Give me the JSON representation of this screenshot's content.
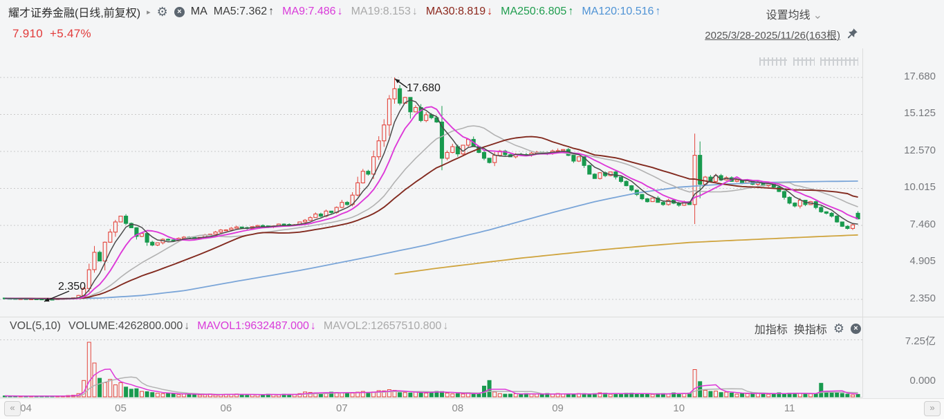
{
  "header": {
    "title": "耀才证券金融(日线,前复权)",
    "title_caret": "▸",
    "ma_label": "MA",
    "ma_items": [
      {
        "key": "ma5",
        "text": "MA5:7.362",
        "color": "#3c3c3c",
        "arrow": "↑",
        "arrow_color": "#3c3c3c"
      },
      {
        "key": "ma9",
        "text": "MA9:7.486",
        "color": "#d93ad9",
        "arrow": "↓",
        "arrow_color": "#d93ad9"
      },
      {
        "key": "ma19",
        "text": "MA19:8.153",
        "color": "#a9a9a9",
        "arrow": "↓",
        "arrow_color": "#a9a9a9"
      },
      {
        "key": "ma30",
        "text": "MA30:8.819",
        "color": "#8b261b",
        "arrow": "↓",
        "arrow_color": "#c9251c"
      },
      {
        "key": "ma250",
        "text": "MA250:6.805",
        "color": "#1f9d4e",
        "arrow": "↑",
        "arrow_color": "#1f9d4e"
      },
      {
        "key": "ma120",
        "text": "MA120:10.516",
        "color": "#4f93d5",
        "arrow": "↑",
        "arrow_color": "#4f93d5"
      }
    ],
    "settings_label": "设置均线",
    "settings_chevron": "⌄",
    "quote_price": "7.910",
    "quote_change": "+5.47%",
    "date_range": "2025/3/28-2025/11/26(163根)"
  },
  "annotations": {
    "high": "17.680",
    "low": "2.350"
  },
  "volume_panel": {
    "items": [
      {
        "key": "vol-indicator",
        "text": "VOL(5,10)",
        "color": "#4a4a4a",
        "arrow": "",
        "arrow_color": ""
      },
      {
        "key": "volume",
        "text": "VOLUME:4262800.000",
        "color": "#4a4a4a",
        "arrow": "↓",
        "arrow_color": "#6a6a6a"
      },
      {
        "key": "mavol1",
        "text": "MAVOL1:9632487.000",
        "color": "#d93ad9",
        "arrow": "↓",
        "arrow_color": "#d93ad9"
      },
      {
        "key": "mavol2",
        "text": "MAVOL2:12657510.800",
        "color": "#a9a9a9",
        "arrow": "↓",
        "arrow_color": "#a9a9a9"
      }
    ],
    "add_indicator": "加指标",
    "switch_indicator": "换指标",
    "axis_max": "7.25亿",
    "axis_min": "0.000"
  },
  "footer": {
    "scroll_left": "«",
    "scroll_right": "»"
  },
  "chart_data": {
    "type": "candlestick+volume",
    "symbol": "耀才证券金融",
    "period": "日线,前复权",
    "bar_count": 163,
    "date_range": "2025/3/28-2025/11/26",
    "last_price": 7.91,
    "last_change_pct": 5.47,
    "high_annotation": 17.68,
    "low_annotation": 2.35,
    "ylim": [
      2.35,
      17.68
    ],
    "y_ticks": [
      {
        "label": "17.680",
        "v": 17.68
      },
      {
        "label": "15.125",
        "v": 15.125
      },
      {
        "label": "12.570",
        "v": 12.57
      },
      {
        "label": "10.015",
        "v": 10.015
      },
      {
        "label": "7.460",
        "v": 7.46
      },
      {
        "label": "4.905",
        "v": 4.905
      },
      {
        "label": "2.350",
        "v": 2.35
      }
    ],
    "x_months": [
      {
        "label": "04",
        "i": 4
      },
      {
        "label": "05",
        "i": 22
      },
      {
        "label": "06",
        "i": 42
      },
      {
        "label": "07",
        "i": 64
      },
      {
        "label": "08",
        "i": 86
      },
      {
        "label": "09",
        "i": 105
      },
      {
        "label": "10",
        "i": 128
      },
      {
        "label": "11",
        "i": 149
      }
    ],
    "volume_axis": {
      "max_label": "7.25亿",
      "max_value": 725000000,
      "min_label": "0.000"
    },
    "last_values": {
      "ma5": 7.362,
      "ma9": 7.486,
      "ma19": 8.153,
      "ma30": 8.819,
      "ma250": 6.805,
      "ma120": 10.516,
      "volume": 4262800,
      "mavol1": 9632487,
      "mavol2": 12657510.8
    },
    "last_open": 8.3,
    "close_keyframes": [
      [
        0,
        2.42
      ],
      [
        3,
        2.4
      ],
      [
        6,
        2.38
      ],
      [
        8,
        2.36
      ],
      [
        10,
        2.4
      ],
      [
        12,
        2.43
      ],
      [
        13,
        2.46
      ],
      [
        14,
        2.62
      ],
      [
        15,
        3.1
      ],
      [
        16,
        4.4
      ],
      [
        17,
        5.6
      ],
      [
        18,
        5.0
      ],
      [
        19,
        6.3
      ],
      [
        20,
        7.0
      ],
      [
        21,
        7.7
      ],
      [
        22,
        8.1
      ],
      [
        23,
        7.6
      ],
      [
        24,
        7.3
      ],
      [
        25,
        6.7
      ],
      [
        26,
        6.9
      ],
      [
        27,
        6.3
      ],
      [
        28,
        6.1
      ],
      [
        30,
        6.5
      ],
      [
        32,
        6.4
      ],
      [
        34,
        6.65
      ],
      [
        36,
        6.55
      ],
      [
        38,
        6.8
      ],
      [
        40,
        7.0
      ],
      [
        42,
        7.15
      ],
      [
        44,
        7.35
      ],
      [
        46,
        7.25
      ],
      [
        48,
        7.45
      ],
      [
        50,
        7.35
      ],
      [
        52,
        7.55
      ],
      [
        54,
        7.45
      ],
      [
        56,
        7.7
      ],
      [
        58,
        8.0
      ],
      [
        59,
        8.25
      ],
      [
        60,
        8.1
      ],
      [
        61,
        8.45
      ],
      [
        62,
        8.35
      ],
      [
        63,
        8.7
      ],
      [
        64,
        9.05
      ],
      [
        65,
        8.9
      ],
      [
        66,
        9.55
      ],
      [
        67,
        10.4
      ],
      [
        68,
        11.2
      ],
      [
        69,
        11.0
      ],
      [
        70,
        12.2
      ],
      [
        71,
        13.3
      ],
      [
        72,
        14.4
      ],
      [
        73,
        16.2
      ],
      [
        74,
        16.9
      ],
      [
        75,
        15.9
      ],
      [
        76,
        16.3
      ],
      [
        77,
        15.3
      ],
      [
        78,
        15.6
      ],
      [
        79,
        14.7
      ],
      [
        80,
        15.1
      ],
      [
        81,
        14.9
      ],
      [
        82,
        14.6
      ],
      [
        83,
        12.1
      ],
      [
        84,
        12.5
      ],
      [
        85,
        12.9
      ],
      [
        86,
        12.4
      ],
      [
        87,
        13.0
      ],
      [
        88,
        13.4
      ],
      [
        89,
        12.9
      ],
      [
        90,
        12.5
      ],
      [
        91,
        12.1
      ],
      [
        92,
        11.8
      ],
      [
        93,
        12.3
      ],
      [
        94,
        12.6
      ],
      [
        96,
        12.2
      ],
      [
        98,
        12.35
      ],
      [
        100,
        12.45
      ],
      [
        102,
        12.5
      ],
      [
        104,
        12.6
      ],
      [
        106,
        12.7
      ],
      [
        107,
        12.3
      ],
      [
        108,
        11.9
      ],
      [
        109,
        12.2
      ],
      [
        110,
        11.6
      ],
      [
        111,
        11.0
      ],
      [
        112,
        10.7
      ],
      [
        113,
        11.1
      ],
      [
        114,
        10.9
      ],
      [
        115,
        11.15
      ],
      [
        116,
        10.8
      ],
      [
        117,
        10.5
      ],
      [
        118,
        10.2
      ],
      [
        119,
        9.9
      ],
      [
        120,
        9.6
      ],
      [
        121,
        9.3
      ],
      [
        122,
        9.1
      ],
      [
        123,
        9.35
      ],
      [
        124,
        9.05
      ],
      [
        125,
        8.9
      ],
      [
        126,
        9.2
      ],
      [
        127,
        9.0
      ],
      [
        128,
        8.85
      ],
      [
        129,
        9.1
      ],
      [
        130,
        8.9
      ],
      [
        131,
        12.3
      ],
      [
        132,
        10.3
      ],
      [
        133,
        10.8
      ],
      [
        134,
        10.5
      ],
      [
        135,
        10.9
      ],
      [
        136,
        10.6
      ],
      [
        137,
        10.75
      ],
      [
        138,
        10.5
      ],
      [
        139,
        10.6
      ],
      [
        140,
        10.4
      ],
      [
        141,
        10.55
      ],
      [
        142,
        10.3
      ],
      [
        143,
        10.45
      ],
      [
        144,
        10.2
      ],
      [
        145,
        10.35
      ],
      [
        146,
        10.1
      ],
      [
        147,
        9.8
      ],
      [
        148,
        9.4
      ],
      [
        149,
        9.0
      ],
      [
        150,
        8.8
      ],
      [
        151,
        9.2
      ],
      [
        152,
        8.9
      ],
      [
        153,
        9.1
      ],
      [
        154,
        8.7
      ],
      [
        155,
        8.4
      ],
      [
        156,
        8.3
      ],
      [
        157,
        8.1
      ],
      [
        158,
        7.7
      ],
      [
        159,
        7.4
      ],
      [
        160,
        7.25
      ],
      [
        161,
        7.5
      ],
      [
        162,
        7.91
      ]
    ],
    "volume_keyframes": [
      [
        0,
        0.012
      ],
      [
        10,
        0.015
      ],
      [
        13,
        0.03
      ],
      [
        14,
        0.06
      ],
      [
        15,
        0.3
      ],
      [
        16,
        1.0
      ],
      [
        17,
        0.62
      ],
      [
        18,
        0.34
      ],
      [
        19,
        0.26
      ],
      [
        20,
        0.32
      ],
      [
        21,
        0.22
      ],
      [
        22,
        0.26
      ],
      [
        23,
        0.18
      ],
      [
        24,
        0.14
      ],
      [
        26,
        0.1
      ],
      [
        28,
        0.08
      ],
      [
        30,
        0.06
      ],
      [
        34,
        0.05
      ],
      [
        38,
        0.04
      ],
      [
        42,
        0.05
      ],
      [
        46,
        0.04
      ],
      [
        50,
        0.05
      ],
      [
        54,
        0.045
      ],
      [
        57,
        0.09
      ],
      [
        60,
        0.07
      ],
      [
        63,
        0.08
      ],
      [
        66,
        0.07
      ],
      [
        68,
        0.1
      ],
      [
        70,
        0.09
      ],
      [
        72,
        0.11
      ],
      [
        74,
        0.12
      ],
      [
        76,
        0.08
      ],
      [
        78,
        0.09
      ],
      [
        80,
        0.07
      ],
      [
        82,
        0.1
      ],
      [
        84,
        0.07
      ],
      [
        86,
        0.06
      ],
      [
        88,
        0.08
      ],
      [
        90,
        0.05
      ],
      [
        92,
        0.3
      ],
      [
        93,
        0.09
      ],
      [
        94,
        0.06
      ],
      [
        96,
        0.05
      ],
      [
        100,
        0.05
      ],
      [
        104,
        0.05
      ],
      [
        108,
        0.05
      ],
      [
        112,
        0.06
      ],
      [
        116,
        0.06
      ],
      [
        120,
        0.06
      ],
      [
        124,
        0.06
      ],
      [
        128,
        0.06
      ],
      [
        130,
        0.07
      ],
      [
        131,
        0.5
      ],
      [
        132,
        0.28
      ],
      [
        133,
        0.12
      ],
      [
        134,
        0.1
      ],
      [
        136,
        0.08
      ],
      [
        138,
        0.07
      ],
      [
        140,
        0.06
      ],
      [
        144,
        0.06
      ],
      [
        148,
        0.06
      ],
      [
        150,
        0.07
      ],
      [
        152,
        0.06
      ],
      [
        154,
        0.05
      ],
      [
        155,
        0.25
      ],
      [
        156,
        0.1
      ],
      [
        158,
        0.07
      ],
      [
        160,
        0.05
      ],
      [
        162,
        0.045
      ]
    ],
    "ma120_keyframes": [
      [
        0,
        2.4
      ],
      [
        10,
        2.4
      ],
      [
        18,
        2.44
      ],
      [
        26,
        2.62
      ],
      [
        34,
        2.95
      ],
      [
        44,
        3.6
      ],
      [
        56,
        4.35
      ],
      [
        68,
        5.2
      ],
      [
        80,
        6.1
      ],
      [
        92,
        7.15
      ],
      [
        104,
        8.35
      ],
      [
        112,
        9.1
      ],
      [
        120,
        9.7
      ],
      [
        128,
        10.1
      ],
      [
        136,
        10.3
      ],
      [
        144,
        10.42
      ],
      [
        152,
        10.48
      ],
      [
        162,
        10.52
      ]
    ],
    "ma250_keyframes": [
      [
        74,
        4.1
      ],
      [
        82,
        4.5
      ],
      [
        90,
        4.85
      ],
      [
        98,
        5.2
      ],
      [
        106,
        5.5
      ],
      [
        114,
        5.8
      ],
      [
        122,
        6.05
      ],
      [
        130,
        6.28
      ],
      [
        138,
        6.42
      ],
      [
        146,
        6.55
      ],
      [
        154,
        6.68
      ],
      [
        162,
        6.8
      ]
    ],
    "colors": {
      "up": "#e3453c",
      "down": "#189a4e",
      "ma5": "#4a4a4a",
      "ma9": "#dd38d8",
      "ma19": "#b2b2b2",
      "ma30": "#822a1f",
      "ma120": "#7aa5d8",
      "ma250": "#cfa43e",
      "grid": "#c9c9c9",
      "annotation": "#1b1b1b"
    }
  }
}
